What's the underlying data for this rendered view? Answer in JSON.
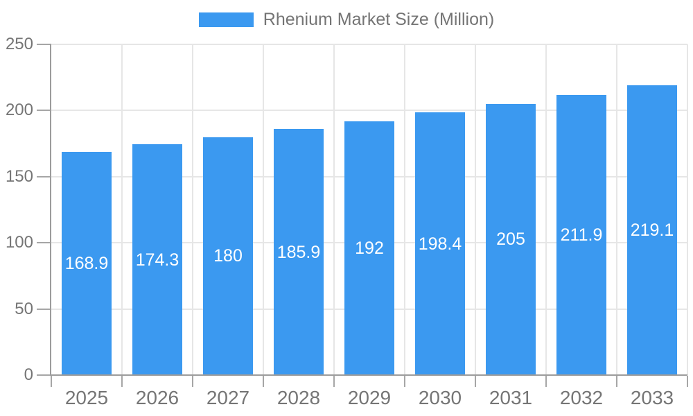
{
  "chart_data": {
    "type": "bar",
    "title": "Rhenium Market Size (Million)",
    "series_name": "Rhenium Market Size (Million)",
    "categories": [
      "2025",
      "2026",
      "2027",
      "2028",
      "2029",
      "2030",
      "2031",
      "2032",
      "2033"
    ],
    "values": [
      168.9,
      174.3,
      180,
      185.9,
      192,
      198.4,
      205,
      211.9,
      219.1
    ],
    "xlabel": "",
    "ylabel": "",
    "ylim": [
      0,
      250
    ],
    "y_ticks": [
      0,
      50,
      100,
      150,
      200,
      250
    ],
    "grid": true,
    "legend_position": "top-center",
    "bar_color": "#3b99f0",
    "grid_color": "#e6e6e6",
    "axis_color": "#9c9c9c",
    "tick_label_color": "#757575",
    "value_label_color": "#ffffff"
  }
}
